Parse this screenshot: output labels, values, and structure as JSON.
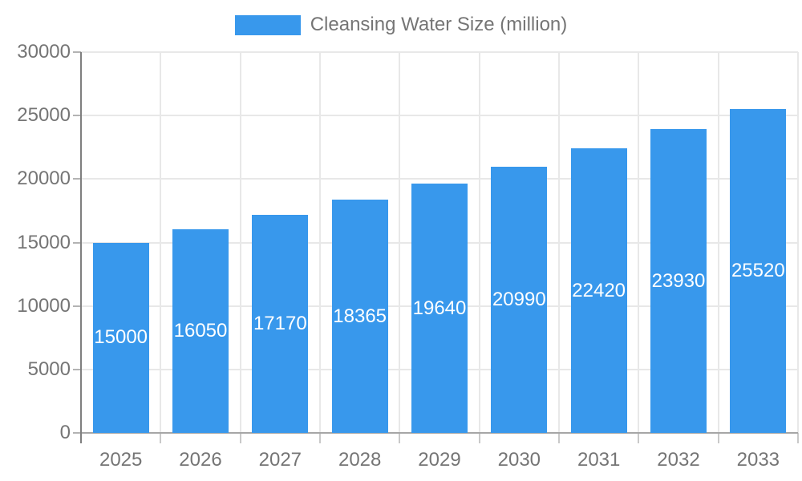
{
  "chart_data": {
    "type": "bar",
    "title": "Cleansing Water Size (million)",
    "legend_position": "top",
    "categories": [
      "2025",
      "2026",
      "2027",
      "2028",
      "2029",
      "2030",
      "2031",
      "2032",
      "2033"
    ],
    "series": [
      {
        "name": "Cleansing Water Size (million)",
        "values": [
          15000,
          16050,
          17170,
          18365,
          19640,
          20990,
          22420,
          23930,
          25520
        ]
      }
    ],
    "bar_value_labels": [
      "15000",
      "16050",
      "17170",
      "18365",
      "19640",
      "20990",
      "22420",
      "23930",
      "25520"
    ],
    "xlabel": "",
    "ylabel": "",
    "ylim": [
      0,
      30000
    ],
    "y_ticks": [
      "0",
      "5000",
      "10000",
      "15000",
      "20000",
      "25000",
      "30000"
    ],
    "grid": "on",
    "colors": {
      "bar": "#3898EC",
      "value_label": "#FFFFFF",
      "axis_text": "#757575"
    }
  }
}
